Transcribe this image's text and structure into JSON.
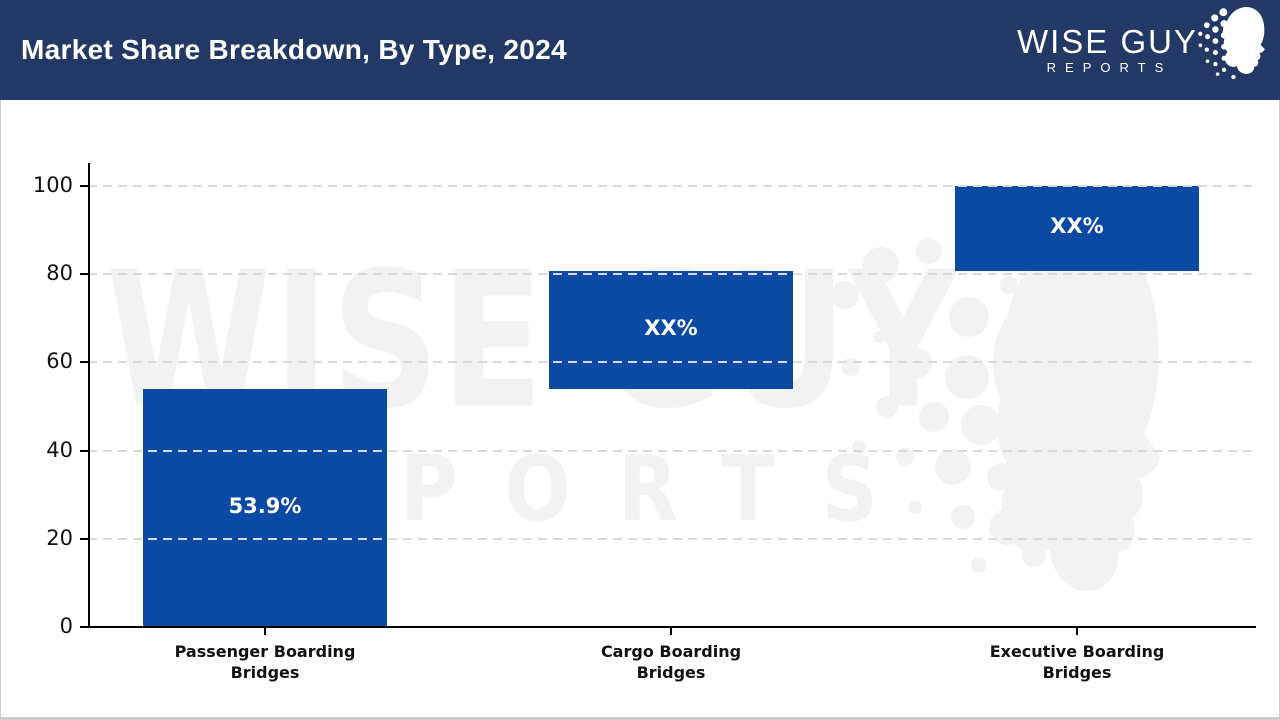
{
  "header": {
    "title": "Market Share Breakdown, By Type, 2024",
    "logo": {
      "line1": "WISE GUY",
      "line2": "REPORTS"
    }
  },
  "watermark": {
    "line1": "WISE GUY",
    "line2": "REPORTS"
  },
  "colors": {
    "header_bg": "#223865",
    "bar_blue": "#0b4aa2",
    "grid": "#d9d9d9",
    "axis": "#000000",
    "watermark": "#f2f2f3",
    "border": "#cccccc"
  },
  "chart_data": {
    "type": "bar",
    "variant": "waterfall",
    "title": "Market Share Breakdown, By Type, 2024",
    "xlabel": "",
    "ylabel": "",
    "ylim": [
      0,
      105
    ],
    "yticks": [
      0,
      20,
      40,
      60,
      80,
      100
    ],
    "grid": "horizontal dashed",
    "legend": "none",
    "bar_color": "#0b4aa2",
    "categories": [
      "Passenger Boarding\nBridges",
      "Cargo Boarding\nBridges",
      "Executive Boarding\nBridges"
    ],
    "segments": [
      {
        "category": "Passenger Boarding Bridges",
        "start": 0,
        "end": 53.9,
        "label": "53.9%"
      },
      {
        "category": "Cargo Boarding Bridges",
        "start": 53.9,
        "end": 80.8,
        "label": "XX%"
      },
      {
        "category": "Executive Boarding Bridges",
        "start": 80.8,
        "end": 100,
        "label": "XX%"
      }
    ]
  }
}
